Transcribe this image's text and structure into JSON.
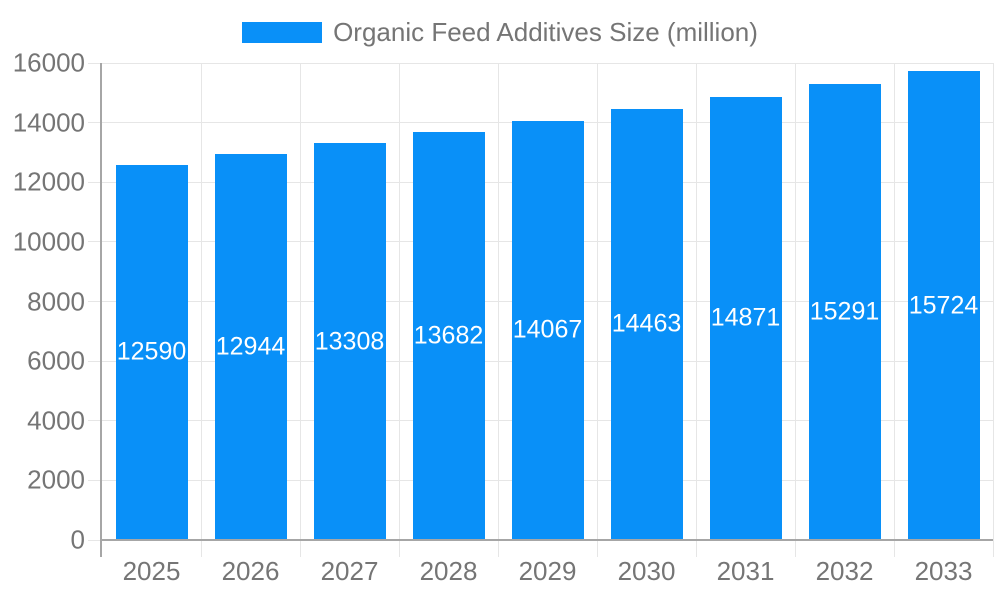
{
  "legend": {
    "label": "Organic Feed Additives Size (million)"
  },
  "chart_data": {
    "type": "bar",
    "title": "",
    "categories": [
      "2025",
      "2026",
      "2027",
      "2028",
      "2029",
      "2030",
      "2031",
      "2032",
      "2033"
    ],
    "values": [
      12590,
      12944,
      13308,
      13682,
      14067,
      14463,
      14871,
      15291,
      15724
    ],
    "series_name": "Organic Feed Additives Size (million)",
    "xlabel": "",
    "ylabel": "",
    "ylim": [
      0,
      16000
    ],
    "yticks": [
      0,
      2000,
      4000,
      6000,
      8000,
      10000,
      12000,
      14000,
      16000
    ],
    "grid": "both",
    "legend_position": "top-center",
    "value_labels": "inside-center"
  },
  "colors": {
    "bar": "#0990f8",
    "grid": "#e6e6e6",
    "axis": "#a6a6a6",
    "label_text": "#757575",
    "value_text": "#ffffff",
    "background": "#ffffff"
  }
}
